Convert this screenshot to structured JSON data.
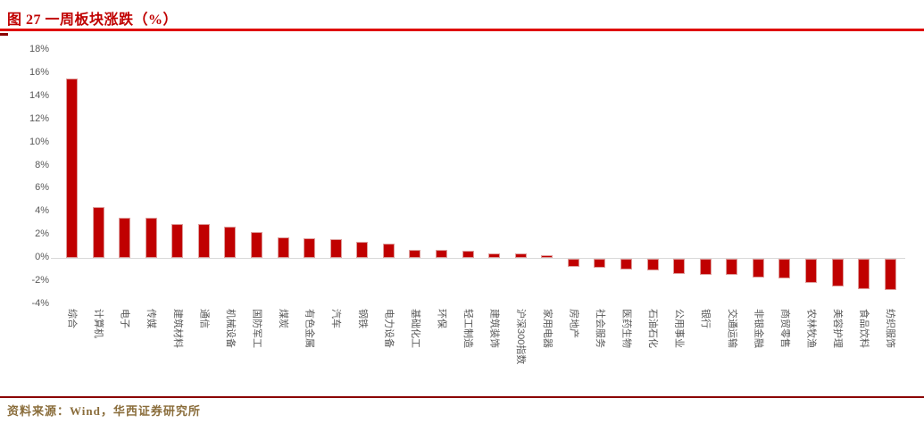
{
  "figure": {
    "title": "图 27 一周板块涨跌（%）",
    "source": "资料来源：Wind，华西证券研究所"
  },
  "colors": {
    "bar": "#C00000",
    "title_text": "#C00000",
    "title_rule": "#DF0B00",
    "source_rule": "#8B0000",
    "source_text": "#8A6D3B",
    "axis_text": "#595959",
    "zero_line": "#D9D9D9"
  },
  "chart_data": {
    "type": "bar",
    "title": "一周板块涨跌（%）",
    "categories": [
      "综合",
      "计算机",
      "电子",
      "传媒",
      "建筑材料",
      "通信",
      "机械设备",
      "国防军工",
      "煤炭",
      "有色金属",
      "汽车",
      "钢铁",
      "电力设备",
      "基础化工",
      "环保",
      "轻工制造",
      "建筑装饰",
      "沪深300指数",
      "家用电器",
      "房地产",
      "社会服务",
      "医药生物",
      "石油石化",
      "公用事业",
      "银行",
      "交通运输",
      "非银金融",
      "商贸零售",
      "农林牧渔",
      "美容护理",
      "食品饮料",
      "纺织服饰"
    ],
    "values": [
      15.5,
      4.4,
      3.5,
      3.5,
      2.9,
      2.9,
      2.7,
      2.2,
      1.8,
      1.7,
      1.6,
      1.4,
      1.2,
      0.7,
      0.7,
      0.6,
      0.4,
      0.4,
      0.2,
      -0.7,
      -0.8,
      -0.9,
      -1.0,
      -1.3,
      -1.4,
      -1.4,
      -1.6,
      -1.7,
      -2.1,
      -2.4,
      -2.6,
      -2.7
    ],
    "xlabel": "",
    "ylabel": "",
    "ylim": [
      -4,
      18
    ],
    "ytick_step": 2,
    "ytick_labels": [
      "18%",
      "16%",
      "14%",
      "12%",
      "10%",
      "8%",
      "6%",
      "4%",
      "2%",
      "0%",
      "-2%",
      "-4%"
    ],
    "grid": false,
    "legend": "none",
    "bar_color": "#C00000"
  }
}
